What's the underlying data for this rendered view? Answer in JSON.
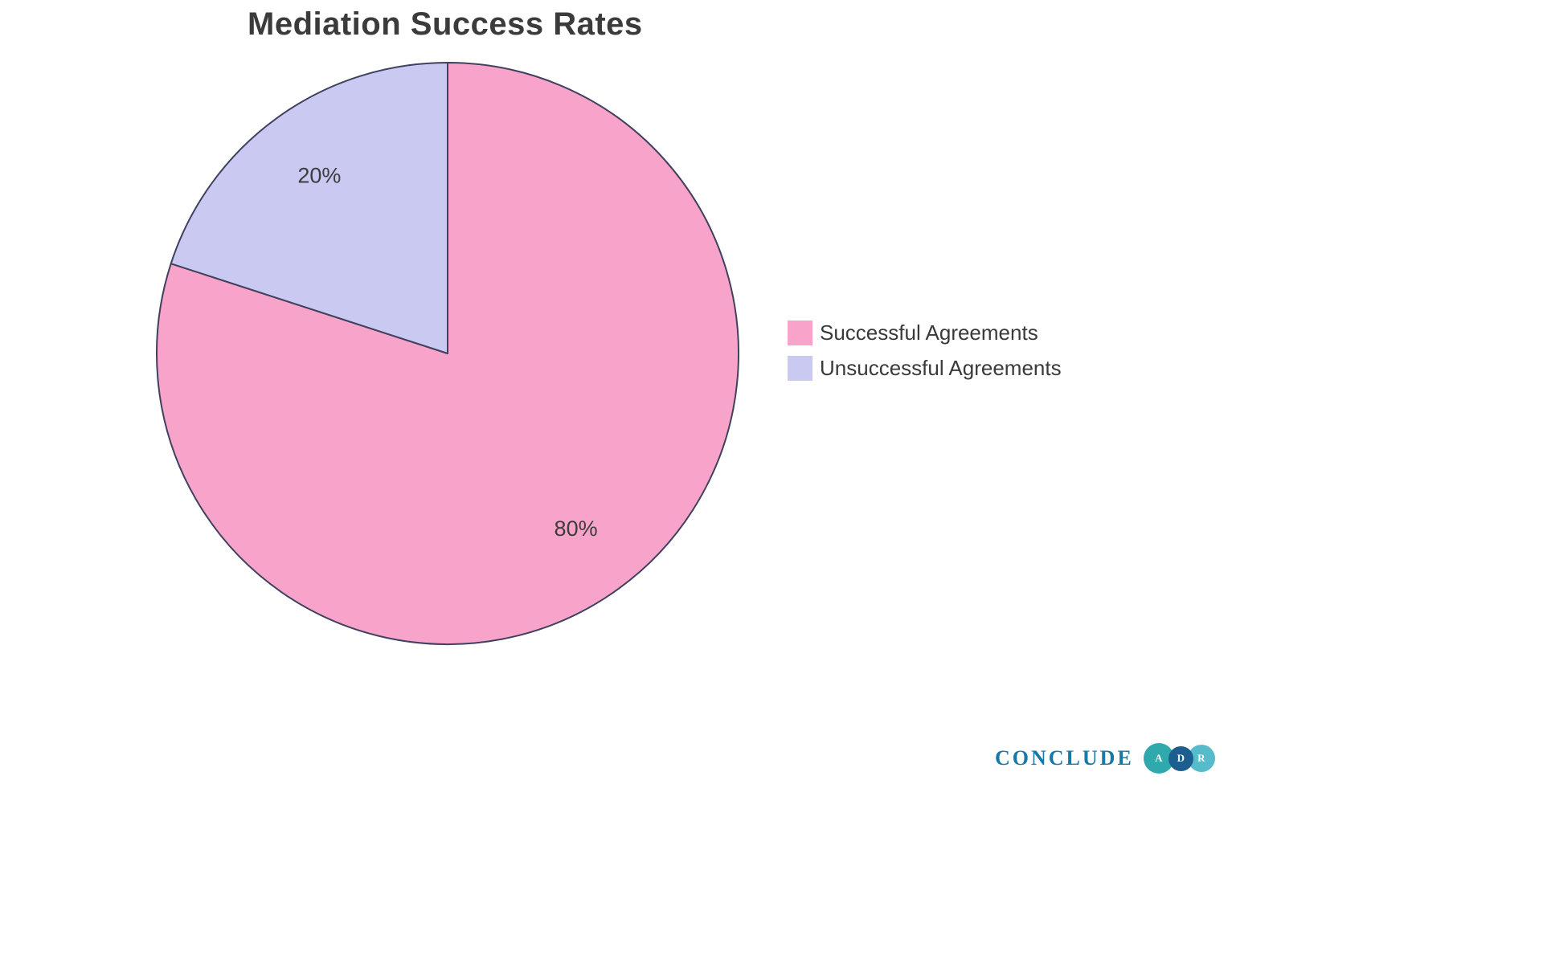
{
  "page": {
    "background": "#ffffff"
  },
  "chart_data": {
    "type": "pie",
    "title": "Mediation Success Rates",
    "labels": [
      "Successful Agreements",
      "Unsuccessful Agreements"
    ],
    "values": [
      80,
      20
    ],
    "slice_labels": [
      "80%",
      "20%"
    ],
    "colors": [
      "#F8A3C9",
      "#C9C9F2"
    ],
    "stroke_color": "#3F415E",
    "stroke_width": 2,
    "start_angle_deg": -90,
    "direction": "clockwise",
    "label_color": "#3d3d3d",
    "label_radius_frac": 0.75,
    "legend_position": "right"
  },
  "legend": {
    "items": [
      {
        "label": "Successful Agreements",
        "color": "#F8A3C9"
      },
      {
        "label": "Unsuccessful Agreements",
        "color": "#C9C9F2"
      }
    ]
  },
  "logo": {
    "text": "CONCLUDE",
    "text_color": "#1878A8",
    "badges": [
      {
        "letter": "A",
        "color": "#2FA9AC"
      },
      {
        "letter": "D",
        "color": "#1C5E8D"
      },
      {
        "letter": "R",
        "color": "#56BCCB"
      }
    ]
  }
}
